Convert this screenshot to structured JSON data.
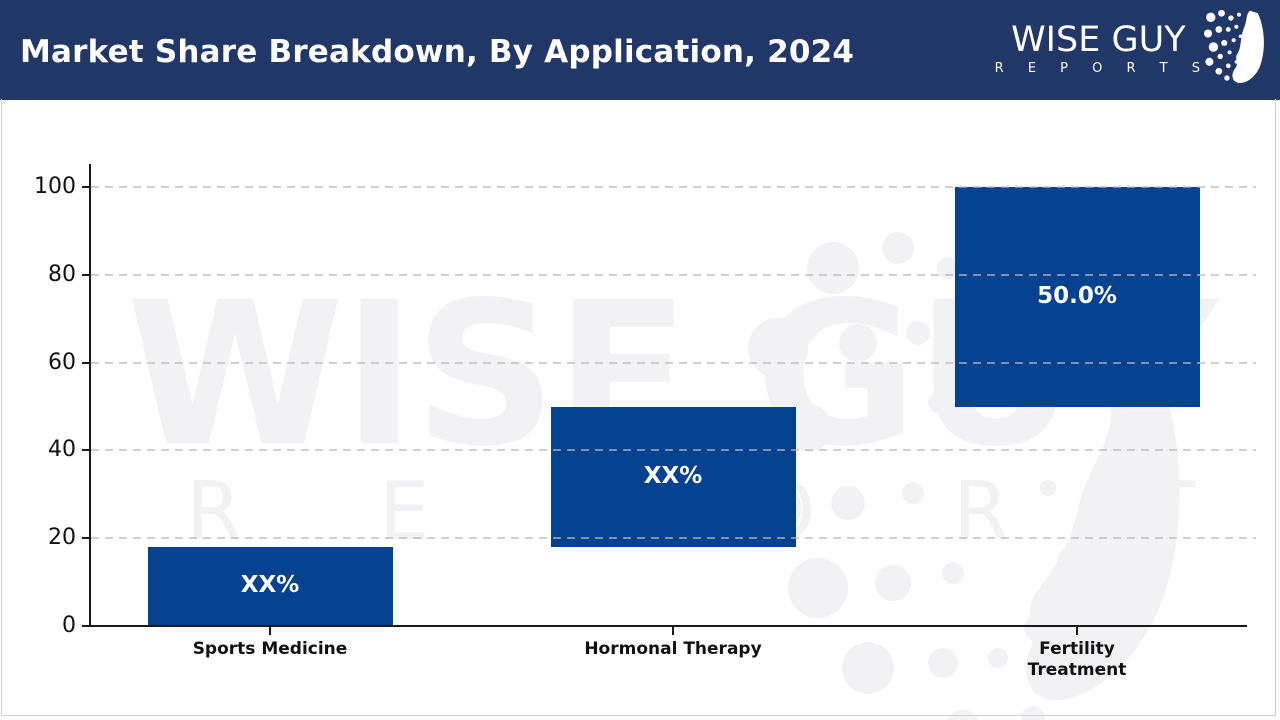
{
  "header": {
    "title": "Market Share Breakdown, By Application, 2024",
    "logo": {
      "line1": "WISE GUY",
      "line2": "R E P O R T S"
    }
  },
  "watermark": {
    "line1": "WISE GUY",
    "line2": "R E P O R T S"
  },
  "colors": {
    "header_bg": "#213768",
    "bar": "#04418f",
    "bar_label": "#ffffff",
    "axis": "#1a1a1a",
    "grid": "#d5d5d5",
    "watermark": "#f2f2f4"
  },
  "chart_data": {
    "type": "bar",
    "subtype": "waterfall-breakdown",
    "title": "Market Share Breakdown, By Application, 2024",
    "categories": [
      "Sports Medicine",
      "Hormonal Therapy",
      "Fertility\nTreatment"
    ],
    "segments": [
      {
        "category": "Sports Medicine",
        "start": 0,
        "end": 18,
        "label": "XX%"
      },
      {
        "category": "Hormonal Therapy",
        "start": 18,
        "end": 50,
        "label": "XX%"
      },
      {
        "category": "Fertility Treatment",
        "start": 50,
        "end": 100,
        "label": "50.0%"
      }
    ],
    "yticks": [
      0,
      20,
      40,
      60,
      80,
      100
    ],
    "ylim": [
      0,
      105
    ],
    "xlabel": "",
    "ylabel": "",
    "grid": "dashed-horizontal",
    "legend": "none"
  }
}
